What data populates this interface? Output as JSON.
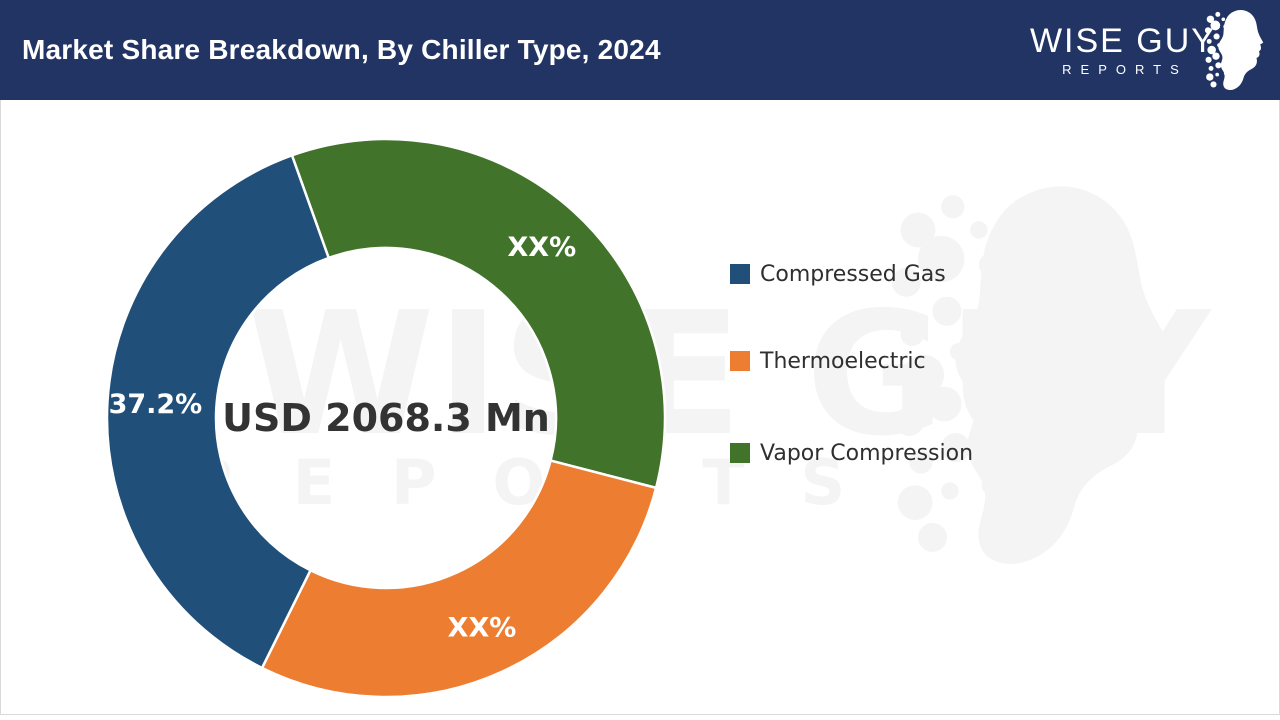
{
  "header": {
    "title": "Market Share Breakdown, By Chiller Type, 2024",
    "logo": {
      "line1": "WISE GUY",
      "line2": "REPORTS"
    }
  },
  "watermark": {
    "line1": "WISE GUY",
    "line2": "REPORTS"
  },
  "theme": {
    "header-bg": "#213463",
    "watermark": "#f4f4f4",
    "center-text-color": "#333333",
    "legend-text-color": "#2f2f2f"
  },
  "chart_data": {
    "type": "pie",
    "subtype": "donut",
    "title": "Market Share Breakdown, By Chiller Type, 2024",
    "center_label": "USD 2068.3 Mn",
    "start_angle_deg": -19.7,
    "inner_radius_ratio": 0.61,
    "legend_position": "right",
    "series": [
      {
        "name": "Compressed Gas",
        "label": "37.2%",
        "value_pct": 37.2,
        "color": "#204F7A"
      },
      {
        "name": "Thermoelectric",
        "label": "XX%",
        "value_pct": 28.3,
        "value_estimated": true,
        "color": "#ED7D31"
      },
      {
        "name": "Vapor Compression",
        "label": "XX%",
        "value_pct": 34.5,
        "value_estimated": true,
        "color": "#41732B"
      }
    ],
    "draw_order": [
      2,
      1,
      0
    ]
  }
}
